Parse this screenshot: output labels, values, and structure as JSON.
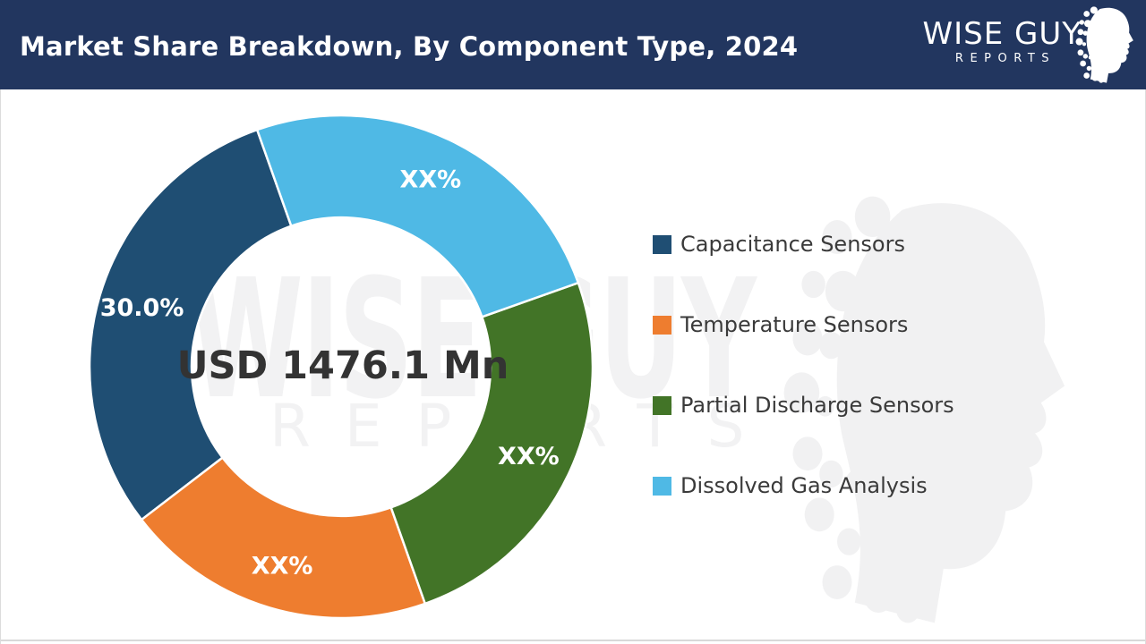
{
  "header": {
    "title": "Market Share Breakdown, By Component Type, 2024",
    "logo": {
      "line1": "WISE GUY",
      "line2": "REPORTS"
    }
  },
  "watermark": {
    "line1": "WISE GUY",
    "line2": "REPORTS"
  },
  "chart_data": {
    "type": "pie",
    "subtype": "donut",
    "title": "Market Share Breakdown, By Component Type, 2024",
    "center_label": "USD 1476.1 Mn",
    "start_angle_deg": 109.5,
    "direction": "counterclockwise",
    "inner_radius_ratio": 0.594,
    "segments": [
      {
        "label": "Capacitance Sensors",
        "value_pct": 30.0,
        "display_label": "30.0%",
        "color": "#1F4E73"
      },
      {
        "label": "Temperature Sensors",
        "value_pct": 20.0,
        "display_label": "XX%",
        "color": "#EE7D2F"
      },
      {
        "label": "Partial Discharge Sensors",
        "value_pct": 25.0,
        "display_label": "XX%",
        "color": "#427427"
      },
      {
        "label": "Dissolved Gas Analysis",
        "value_pct": 25.0,
        "display_label": "XX%",
        "color": "#4FB9E5"
      }
    ]
  }
}
